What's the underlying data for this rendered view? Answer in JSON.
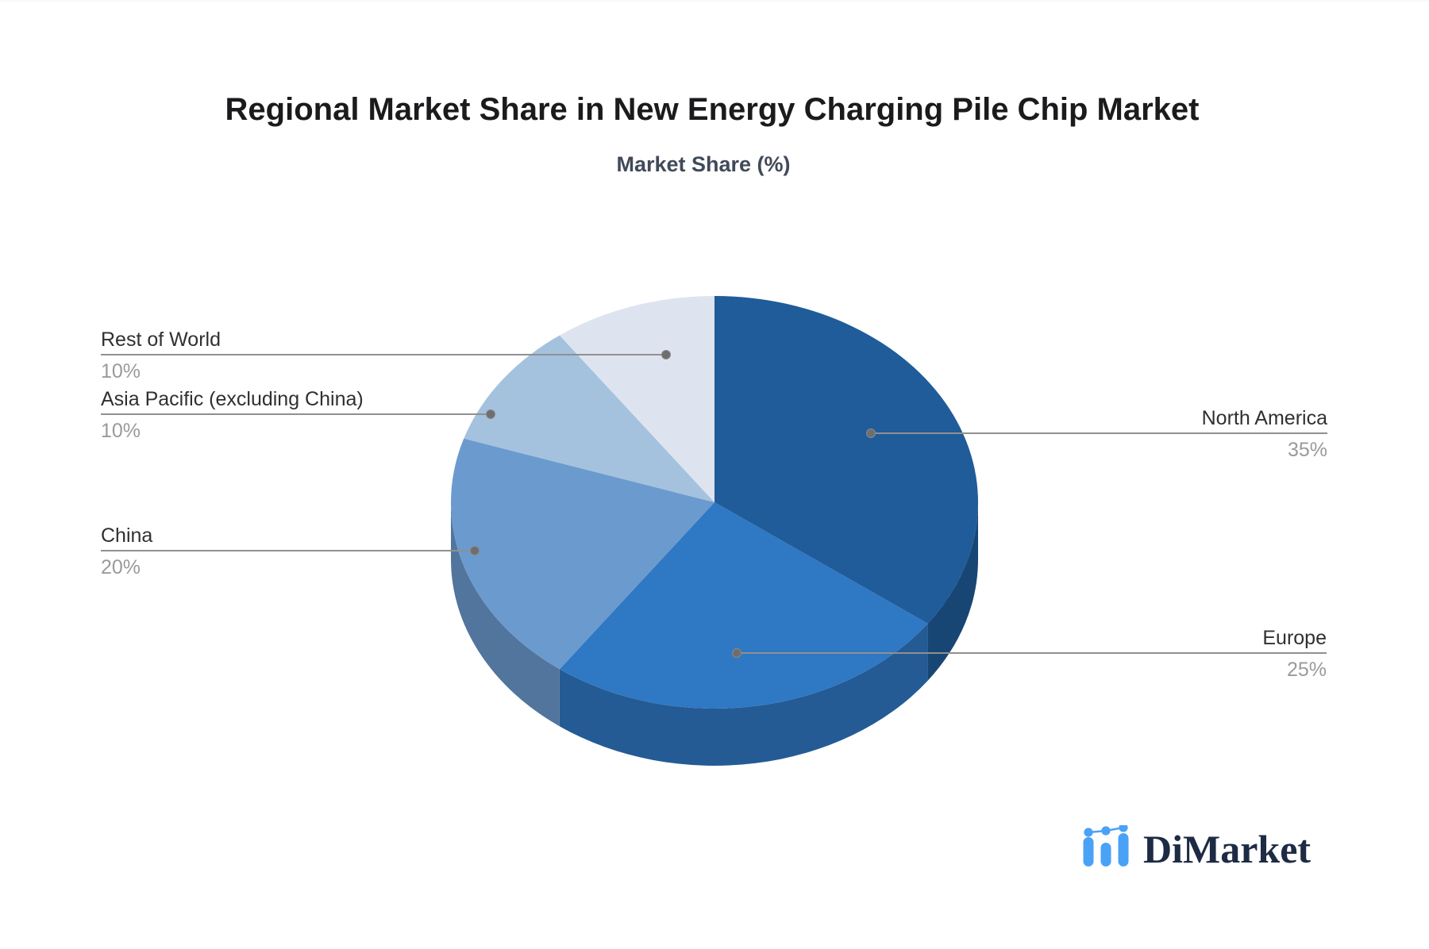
{
  "chart_data": {
    "type": "pie",
    "title": "Regional Market Share in New Energy Charging Pile Chip Market",
    "subtitle": "Market Share (%)",
    "unit": "%",
    "direction": "clockwise",
    "start_angle": "12-o-clock",
    "style": "3d-pie-with-side-rim",
    "labels": "outside-with-leader-lines",
    "legend_position": "none",
    "total": 100,
    "slices": [
      {
        "label": "North America",
        "value": 35,
        "pct_label": "35%",
        "color": "#1f5c99"
      },
      {
        "label": "Europe",
        "value": 25,
        "pct_label": "25%",
        "color": "#2f78c3"
      },
      {
        "label": "China",
        "value": 20,
        "pct_label": "20%",
        "color": "#6b9ace"
      },
      {
        "label": "Asia Pacific (excluding China)",
        "value": 10,
        "pct_label": "10%",
        "color": "#a4c2de"
      },
      {
        "label": "Rest of World",
        "value": 10,
        "pct_label": "10%",
        "color": "#dee4ef"
      }
    ]
  },
  "branding": {
    "logo_text": "DiMarket",
    "logo_icon": "bar-chart-trend-icon",
    "logo_icon_color": "#4aa2f6",
    "logo_text_color": "#1d2b44"
  },
  "colors": {
    "title": "#1b1b1d",
    "subtitle": "#404a59",
    "slice_label": "#303030",
    "slice_pct": "#9a9a9a",
    "leader_line": "#909090",
    "leader_dot": "#6e6e6e",
    "background": "#ffffff"
  }
}
